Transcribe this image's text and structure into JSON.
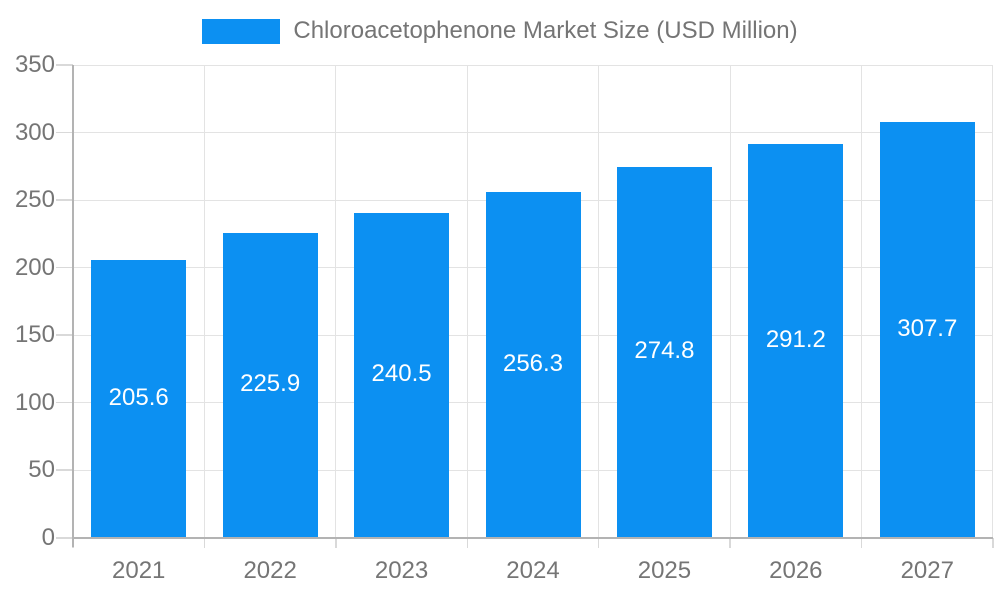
{
  "chart_data": {
    "type": "bar",
    "title": "Chloroacetophenone Market Size (USD Million)",
    "legend_position": "top",
    "categories": [
      "2021",
      "2022",
      "2023",
      "2024",
      "2025",
      "2026",
      "2027"
    ],
    "values": [
      205.6,
      225.9,
      240.5,
      256.3,
      274.8,
      291.2,
      307.7
    ],
    "series_name": "Chloroacetophenone Market Size (USD Million)",
    "xlabel": "",
    "ylabel": "",
    "ylim": [
      0,
      350
    ],
    "ytick_step": 50,
    "yticks": [
      "0",
      "50",
      "100",
      "150",
      "200",
      "250",
      "300",
      "350"
    ],
    "grid": true,
    "value_label_position": "inside-center",
    "colors": {
      "bar": "#0c90f2",
      "grid": "#e3e3e3",
      "axis": "#b3b3b3",
      "tick": "#d9d9d9",
      "text": "#757575",
      "value_label": "#ffffff",
      "background": "#ffffff"
    }
  }
}
